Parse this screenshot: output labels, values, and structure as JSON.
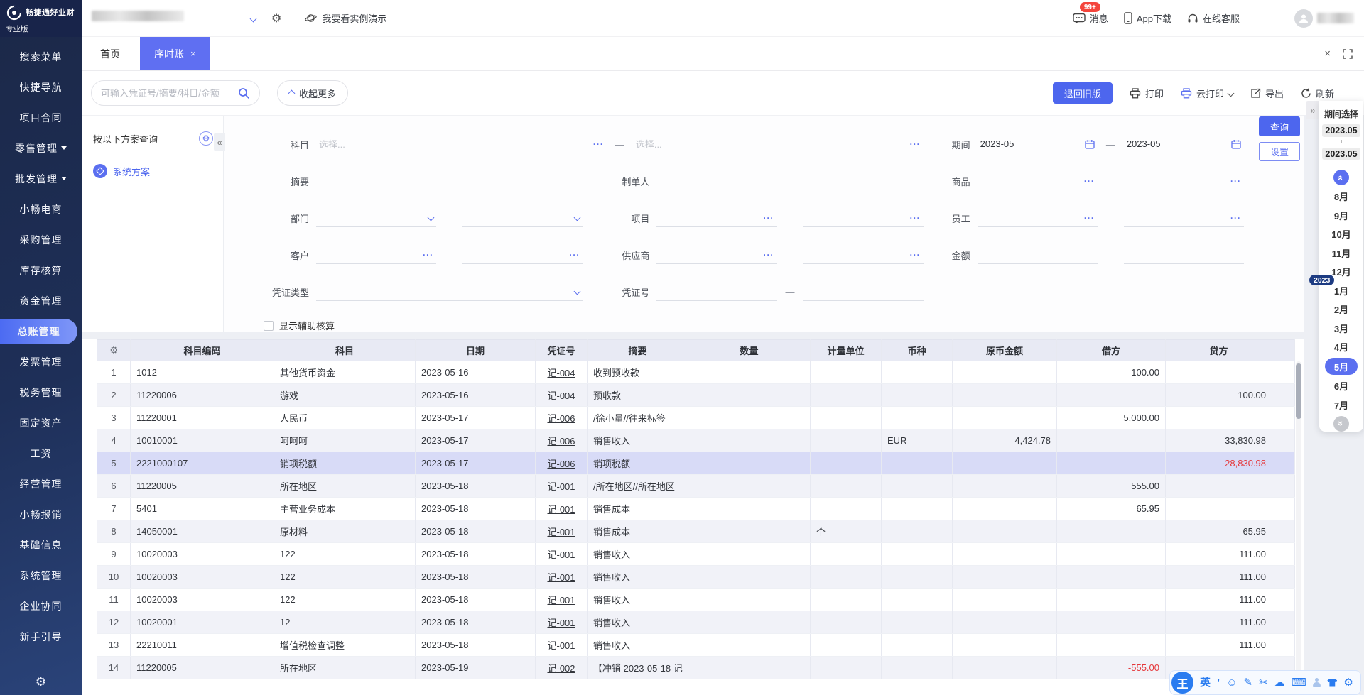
{
  "topbar": {
    "brand": "畅捷通好业财",
    "edition": "专业版",
    "demo": "我要看实例演示",
    "messages": "消息",
    "messages_badge": "99+",
    "app_download": "App下载",
    "support": "在线客服"
  },
  "sidebar": {
    "items": [
      {
        "key": "search-menu",
        "label": "搜索菜单"
      },
      {
        "key": "quick-nav",
        "label": "快捷导航"
      },
      {
        "key": "project-contract",
        "label": "项目合同"
      },
      {
        "key": "retail-mgmt",
        "label": "零售管理",
        "caret": true
      },
      {
        "key": "wholesale-mgmt",
        "label": "批发管理",
        "caret": true
      },
      {
        "key": "xiaochang-ecommerce",
        "label": "小畅电商"
      },
      {
        "key": "purchase-mgmt",
        "label": "采购管理"
      },
      {
        "key": "inventory-accounting",
        "label": "库存核算"
      },
      {
        "key": "funds-mgmt",
        "label": "资金管理"
      },
      {
        "key": "general-ledger",
        "label": "总账管理",
        "active": true
      },
      {
        "key": "invoice-mgmt",
        "label": "发票管理"
      },
      {
        "key": "tax-mgmt",
        "label": "税务管理"
      },
      {
        "key": "fixed-assets",
        "label": "固定资产"
      },
      {
        "key": "payroll",
        "label": "工资"
      },
      {
        "key": "operation-mgmt",
        "label": "经营管理"
      },
      {
        "key": "xiaochang-expense",
        "label": "小畅报销"
      },
      {
        "key": "basic-info",
        "label": "基础信息"
      },
      {
        "key": "system-mgmt",
        "label": "系统管理"
      },
      {
        "key": "enterprise-collab",
        "label": "企业协同"
      },
      {
        "key": "beginner-guide",
        "label": "新手引导"
      }
    ]
  },
  "tabs": [
    {
      "label": "首页"
    },
    {
      "label": "序时账",
      "active": true
    }
  ],
  "toolbar": {
    "search_placeholder": "可输入凭证号/摘要/科目/金额",
    "collapse": "收起更多",
    "back_old": "退回旧版",
    "print": "打印",
    "cloud_print": "云打印",
    "export": "导出",
    "refresh": "刷新"
  },
  "query_panel": {
    "title": "按以下方案查询",
    "scheme": "系统方案"
  },
  "filters": {
    "rows": [
      [
        {
          "key": "subject",
          "label": "科目",
          "span": 2,
          "fields": [
            {
              "placeholder": "选择...",
              "adorn": "dots"
            },
            {
              "placeholder": "选择...",
              "adorn": "dots"
            }
          ]
        },
        {
          "key": "period",
          "label": "期间",
          "fields": [
            {
              "value": "2023-05",
              "adorn": "calendar"
            },
            {
              "value": "2023-05",
              "adorn": "calendar"
            }
          ]
        }
      ],
      [
        {
          "key": "summary",
          "label": "摘要",
          "fields": [
            {}
          ]
        },
        {
          "key": "preparer",
          "label": "制单人",
          "fields": [
            {}
          ]
        },
        {
          "key": "goods",
          "label": "商品",
          "fields": [
            {
              "adorn": "dots"
            },
            {
              "adorn": "dots"
            }
          ]
        }
      ],
      [
        {
          "key": "department",
          "label": "部门",
          "fields": [
            {
              "adorn": "caret"
            },
            {
              "adorn": "caret"
            }
          ]
        },
        {
          "key": "project",
          "label": "项目",
          "fields": [
            {
              "adorn": "dots"
            },
            {
              "adorn": "dots"
            }
          ]
        },
        {
          "key": "employee",
          "label": "员工",
          "fields": [
            {
              "adorn": "dots"
            },
            {
              "adorn": "dots"
            }
          ]
        }
      ],
      [
        {
          "key": "customer",
          "label": "客户",
          "fields": [
            {
              "adorn": "dots"
            },
            {
              "adorn": "dots"
            }
          ]
        },
        {
          "key": "supplier",
          "label": "供应商",
          "fields": [
            {
              "adorn": "dots"
            },
            {
              "adorn": "dots"
            }
          ]
        },
        {
          "key": "amount",
          "label": "金额",
          "fields": [
            {},
            {}
          ]
        }
      ],
      [
        {
          "key": "voucher-type",
          "label": "凭证类型",
          "fields": [
            {
              "adorn": "caret"
            }
          ]
        },
        {
          "key": "voucher-no",
          "label": "凭证号",
          "fields": [
            {},
            {}
          ]
        },
        {
          "key": "empty",
          "label": "",
          "fields": []
        }
      ]
    ],
    "aux_checkbox": "显示辅助核算"
  },
  "buttons": {
    "query": "查询",
    "settings": "设置"
  },
  "period_panel": {
    "title": "期间选择",
    "from": "2023.05",
    "to": "2023.05",
    "year_badge": "2023",
    "months": [
      "8月",
      "9月",
      "10月",
      "11月",
      "12月",
      "1月",
      "2月",
      "3月",
      "4月",
      "5月",
      "6月",
      "7月"
    ],
    "selected": "5月",
    "badge_before": "1月"
  },
  "table": {
    "columns": [
      "科目编码",
      "科目",
      "日期",
      "凭证号",
      "摘要",
      "数量",
      "计量单位",
      "币种",
      "原币金额",
      "借方",
      "贷方"
    ],
    "rows": [
      {
        "num": "1",
        "code": "1012",
        "account": "其他货币资金",
        "date": "2023-05-16",
        "voucher": "记-004",
        "summary": "收到预收款",
        "qty": "",
        "unit": "",
        "currency": "",
        "orig": "",
        "debit": "100.00",
        "credit": ""
      },
      {
        "num": "2",
        "code": "11220006",
        "account": "游戏",
        "date": "2023-05-16",
        "voucher": "记-004",
        "summary": "预收款",
        "qty": "",
        "unit": "",
        "currency": "",
        "orig": "",
        "debit": "",
        "credit": "100.00"
      },
      {
        "num": "3",
        "code": "11220001",
        "account": "人民币",
        "date": "2023-05-17",
        "voucher": "记-006",
        "summary": "/徐小量//往来标签",
        "qty": "",
        "unit": "",
        "currency": "",
        "orig": "",
        "debit": "5,000.00",
        "credit": ""
      },
      {
        "num": "4",
        "code": "10010001",
        "account": "呵呵呵",
        "date": "2023-05-17",
        "voucher": "记-006",
        "summary": "销售收入",
        "qty": "",
        "unit": "",
        "currency": "EUR",
        "orig": "4,424.78",
        "debit": "",
        "credit": "33,830.98"
      },
      {
        "num": "5",
        "code": "2221000107",
        "account": "销项税额",
        "date": "2023-05-17",
        "voucher": "记-006",
        "summary": "销项税额",
        "qty": "",
        "unit": "",
        "currency": "",
        "orig": "",
        "debit": "",
        "credit": "-28,830.98",
        "highlight": true
      },
      {
        "num": "6",
        "code": "11220005",
        "account": "所在地区",
        "date": "2023-05-18",
        "voucher": "记-001",
        "summary": "/所在地区//所在地区",
        "qty": "",
        "unit": "",
        "currency": "",
        "orig": "",
        "debit": "555.00",
        "credit": ""
      },
      {
        "num": "7",
        "code": "5401",
        "account": "主营业务成本",
        "date": "2023-05-18",
        "voucher": "记-001",
        "summary": "销售成本",
        "qty": "",
        "unit": "",
        "currency": "",
        "orig": "",
        "debit": "65.95",
        "credit": ""
      },
      {
        "num": "8",
        "code": "14050001",
        "account": "原材料",
        "date": "2023-05-18",
        "voucher": "记-001",
        "summary": "销售成本",
        "qty": "",
        "unit": "个",
        "currency": "",
        "orig": "",
        "debit": "",
        "credit": "65.95"
      },
      {
        "num": "9",
        "code": "10020003",
        "account": "122",
        "date": "2023-05-18",
        "voucher": "记-001",
        "summary": "销售收入",
        "qty": "",
        "unit": "",
        "currency": "",
        "orig": "",
        "debit": "",
        "credit": "111.00"
      },
      {
        "num": "10",
        "code": "10020003",
        "account": "122",
        "date": "2023-05-18",
        "voucher": "记-001",
        "summary": "销售收入",
        "qty": "",
        "unit": "",
        "currency": "",
        "orig": "",
        "debit": "",
        "credit": "111.00"
      },
      {
        "num": "11",
        "code": "10020003",
        "account": "122",
        "date": "2023-05-18",
        "voucher": "记-001",
        "summary": "销售收入",
        "qty": "",
        "unit": "",
        "currency": "",
        "orig": "",
        "debit": "",
        "credit": "111.00"
      },
      {
        "num": "12",
        "code": "10020001",
        "account": "12",
        "date": "2023-05-18",
        "voucher": "记-001",
        "summary": "销售收入",
        "qty": "",
        "unit": "",
        "currency": "",
        "orig": "",
        "debit": "",
        "credit": "111.00"
      },
      {
        "num": "13",
        "code": "22210011",
        "account": "增值税检查调整",
        "date": "2023-05-18",
        "voucher": "记-001",
        "summary": "销售收入",
        "qty": "",
        "unit": "",
        "currency": "",
        "orig": "",
        "debit": "",
        "credit": "111.00"
      },
      {
        "num": "14",
        "code": "11220005",
        "account": "所在地区",
        "date": "2023-05-19",
        "voucher": "记-002",
        "summary": "【冲销 2023-05-18 记",
        "qty": "",
        "unit": "",
        "currency": "",
        "orig": "",
        "debit": "-555.00",
        "credit": ""
      }
    ]
  },
  "colors": {
    "accent_blue": "#4d66ee",
    "light_accent": "#5b6ff0",
    "sidebar_navy": "#1b2848",
    "active_tab": "#5f6ff2",
    "negative_red": "#e5383b",
    "badge_red": "#f4453c",
    "header_bg": "#e8eaf4",
    "highlight_row": "#d8dbf7"
  },
  "ime": {
    "logo": "王",
    "lang": "英"
  }
}
